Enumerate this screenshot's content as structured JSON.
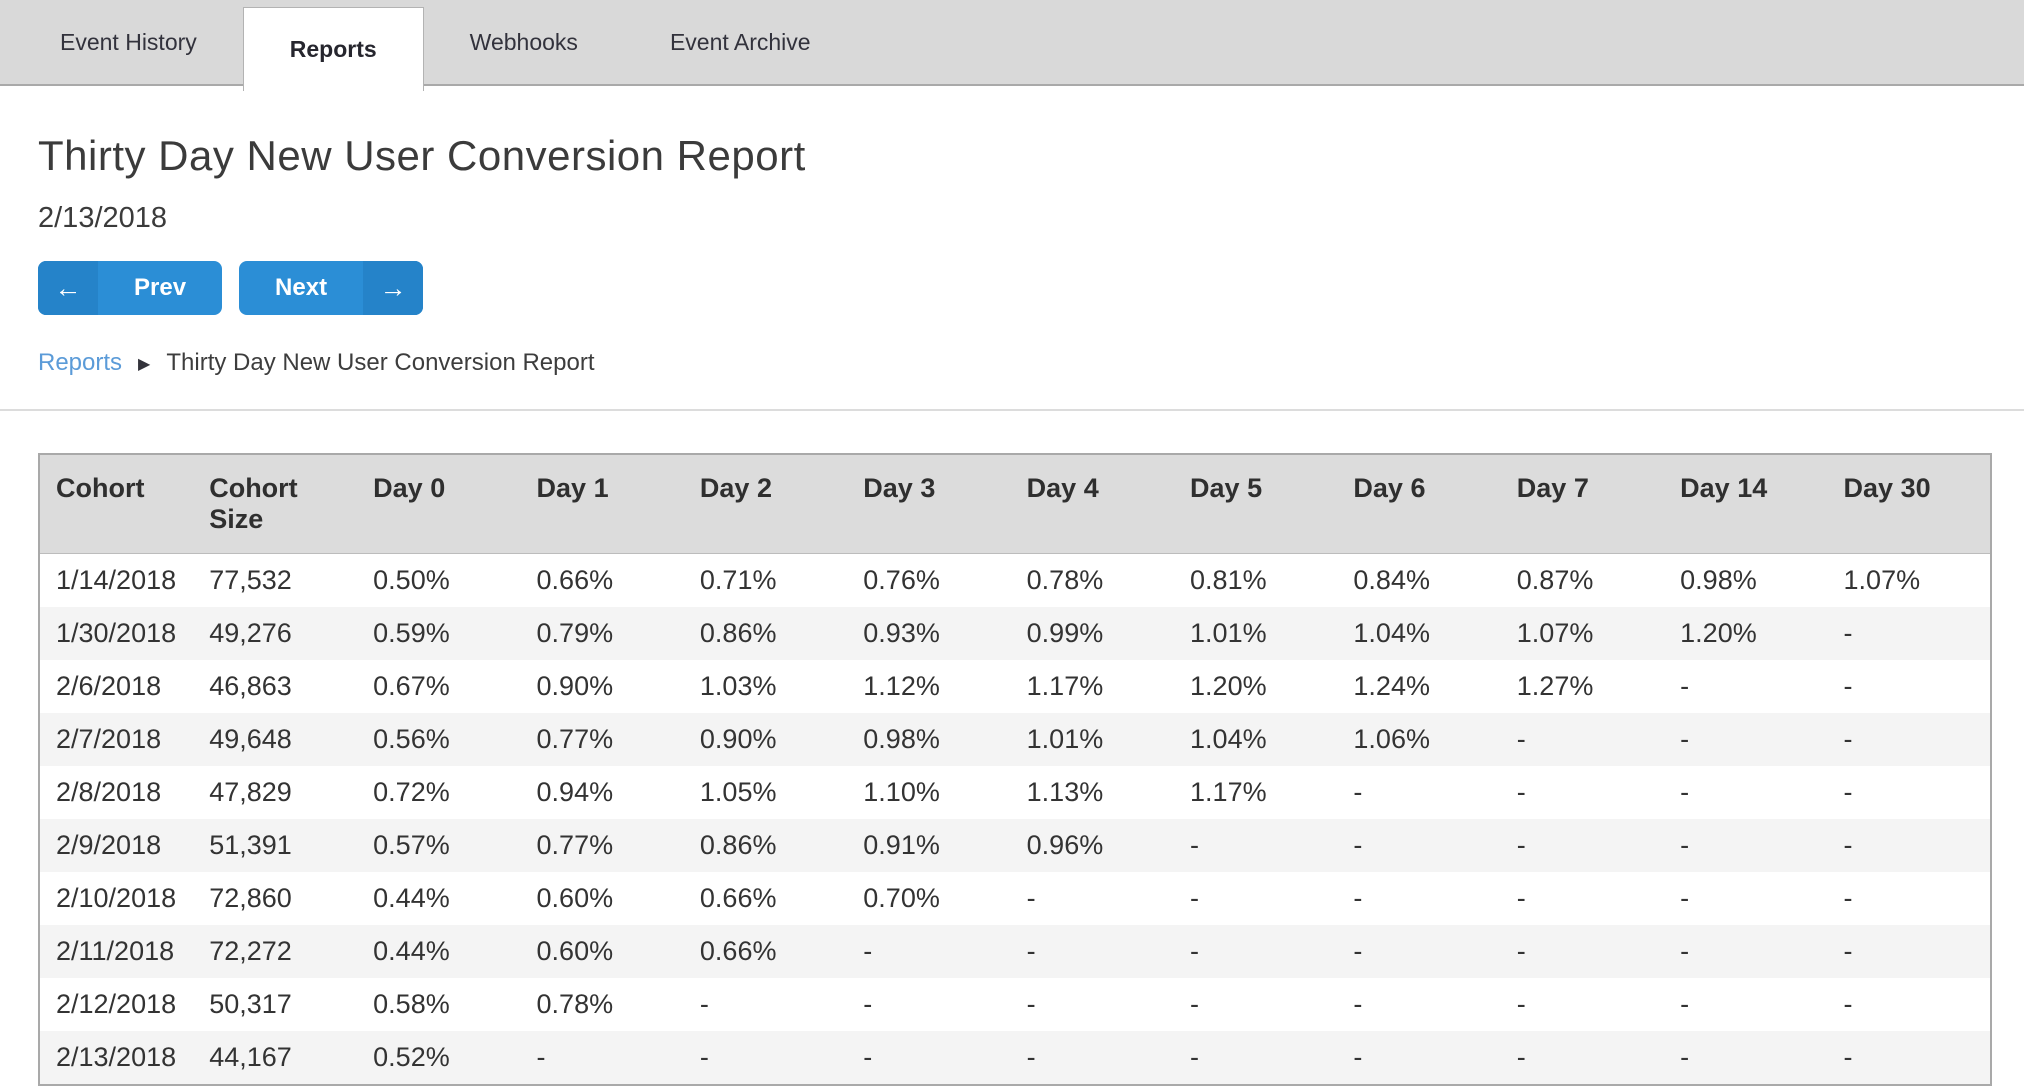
{
  "tabs": [
    {
      "label": "Event History",
      "active": false
    },
    {
      "label": "Reports",
      "active": true
    },
    {
      "label": "Webhooks",
      "active": false
    },
    {
      "label": "Event Archive",
      "active": false
    }
  ],
  "page": {
    "title": "Thirty Day New User Conversion Report",
    "date": "2/13/2018"
  },
  "pager": {
    "prev_label": "Prev",
    "next_label": "Next",
    "prev_arrow": "←",
    "next_arrow": "→"
  },
  "breadcrumb": {
    "link": "Reports",
    "separator": "▶",
    "current": "Thirty Day New User Conversion Report"
  },
  "table": {
    "columns": [
      "Cohort",
      "Cohort Size",
      "Day 0",
      "Day 1",
      "Day 2",
      "Day 3",
      "Day 4",
      "Day 5",
      "Day 6",
      "Day 7",
      "Day 14",
      "Day 30"
    ],
    "rows": [
      [
        "1/14/2018",
        "77,532",
        "0.50%",
        "0.66%",
        "0.71%",
        "0.76%",
        "0.78%",
        "0.81%",
        "0.84%",
        "0.87%",
        "0.98%",
        "1.07%"
      ],
      [
        "1/30/2018",
        "49,276",
        "0.59%",
        "0.79%",
        "0.86%",
        "0.93%",
        "0.99%",
        "1.01%",
        "1.04%",
        "1.07%",
        "1.20%",
        "-"
      ],
      [
        "2/6/2018",
        "46,863",
        "0.67%",
        "0.90%",
        "1.03%",
        "1.12%",
        "1.17%",
        "1.20%",
        "1.24%",
        "1.27%",
        "-",
        "-"
      ],
      [
        "2/7/2018",
        "49,648",
        "0.56%",
        "0.77%",
        "0.90%",
        "0.98%",
        "1.01%",
        "1.04%",
        "1.06%",
        "-",
        "-",
        "-"
      ],
      [
        "2/8/2018",
        "47,829",
        "0.72%",
        "0.94%",
        "1.05%",
        "1.10%",
        "1.13%",
        "1.17%",
        "-",
        "-",
        "-",
        "-"
      ],
      [
        "2/9/2018",
        "51,391",
        "0.57%",
        "0.77%",
        "0.86%",
        "0.91%",
        "0.96%",
        "-",
        "-",
        "-",
        "-",
        "-"
      ],
      [
        "2/10/2018",
        "72,860",
        "0.44%",
        "0.60%",
        "0.66%",
        "0.70%",
        "-",
        "-",
        "-",
        "-",
        "-",
        "-"
      ],
      [
        "2/11/2018",
        "72,272",
        "0.44%",
        "0.60%",
        "0.66%",
        "-",
        "-",
        "-",
        "-",
        "-",
        "-",
        "-"
      ],
      [
        "2/12/2018",
        "50,317",
        "0.58%",
        "0.78%",
        "-",
        "-",
        "-",
        "-",
        "-",
        "-",
        "-",
        "-"
      ],
      [
        "2/13/2018",
        "44,167",
        "0.52%",
        "-",
        "-",
        "-",
        "-",
        "-",
        "-",
        "-",
        "-",
        "-"
      ]
    ]
  },
  "colors": {
    "accent_blue": "#2b8ed6",
    "accent_blue_dark": "#2583c9",
    "link_blue": "#5b9bd8",
    "tabbar_bg": "#d9d9d9",
    "tabbar_border": "#a9a9a9",
    "table_header_bg": "#dcdcdc",
    "zebra_row_bg": "#f4f4f4",
    "table_border": "#a9a9a9"
  }
}
